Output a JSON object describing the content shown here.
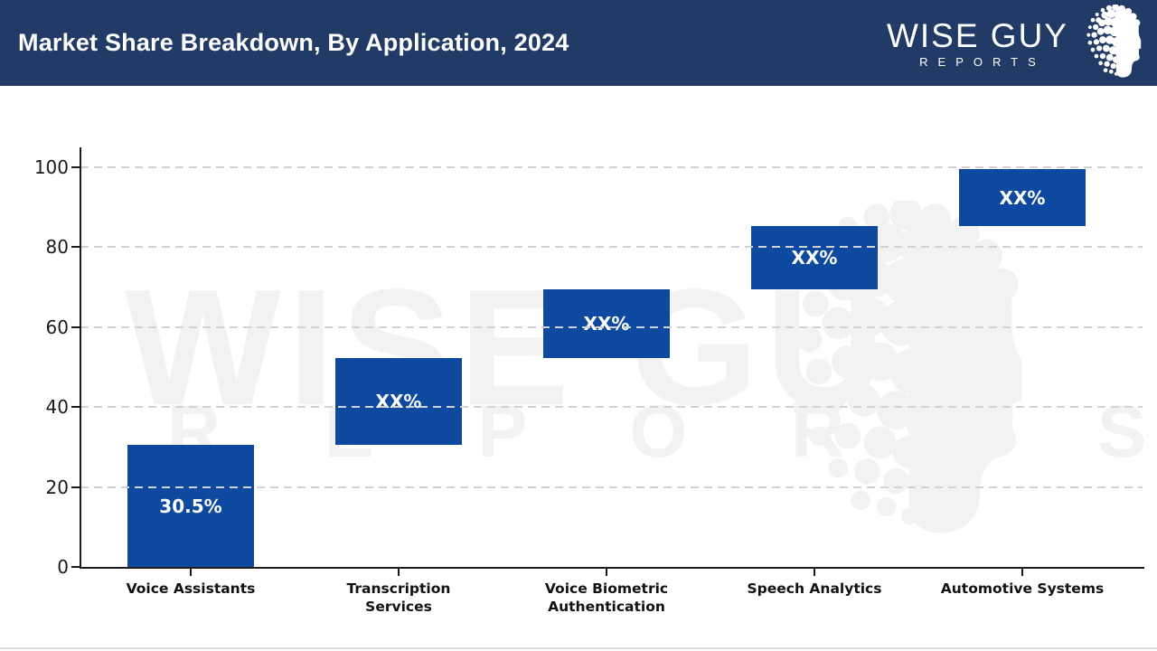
{
  "header": {
    "title": "Market Share Breakdown, By Application, 2024",
    "logo": {
      "line1": "WISE GUY",
      "line2": "REPORTS"
    },
    "header_bg_color": "#213a66"
  },
  "watermark": {
    "line1": "WISE GUY",
    "line2": "R E P O R T S"
  },
  "chart_data": {
    "type": "bar",
    "subtype": "floating-waterfall",
    "title": "Market Share Breakdown, By Application, 2024",
    "categories": [
      "Voice Assistants",
      "Transcription Services",
      "Voice Biometric Authentication",
      "Speech Analytics",
      "Automotive Systems"
    ],
    "category_lines": [
      [
        "Voice Assistants"
      ],
      [
        "Transcription",
        "Services"
      ],
      [
        "Voice Biometric",
        "Authentication"
      ],
      [
        "Speech Analytics"
      ],
      [
        "Automotive Systems"
      ]
    ],
    "series": [
      {
        "name": "Market Share (%)",
        "segments": [
          {
            "category": "Voice Assistants",
            "start": 0,
            "end": 30.5,
            "label": "30.5%"
          },
          {
            "category": "Transcription Services",
            "start": 30.5,
            "end": 52.3,
            "label": "XX%"
          },
          {
            "category": "Voice Biometric Authentication",
            "start": 52.3,
            "end": 69.4,
            "label": "XX%"
          },
          {
            "category": "Speech Analytics",
            "start": 69.4,
            "end": 85.2,
            "label": "XX%"
          },
          {
            "category": "Automotive Systems",
            "start": 85.2,
            "end": 99.6,
            "label": "XX%"
          }
        ]
      }
    ],
    "xlabel": "",
    "ylabel": "",
    "ylim": [
      0,
      100
    ],
    "yticks": [
      0,
      20,
      40,
      60,
      80,
      100
    ],
    "grid": "horizontal-dashed",
    "legend": "none",
    "bar_color": "#0d4a9f",
    "bar_label_color": "#ffffff",
    "axis_color": "#1c1c1c",
    "gridline_color": "#d2d2d2"
  }
}
